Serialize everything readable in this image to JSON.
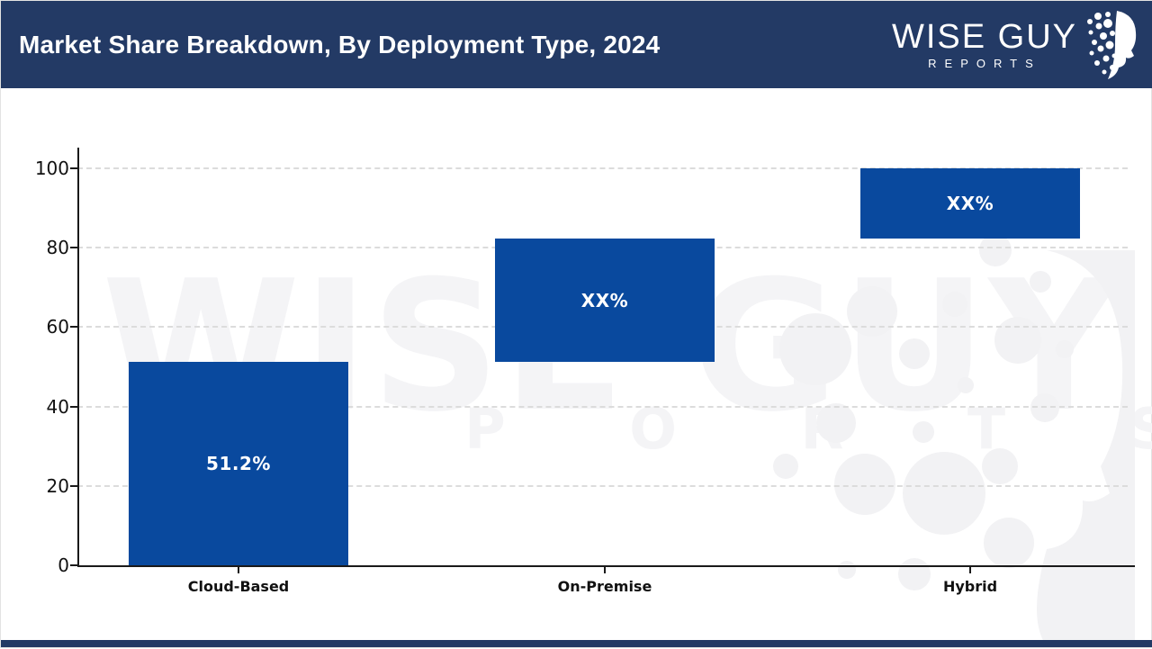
{
  "header": {
    "title": "Market Share Breakdown, By Deployment Type, 2024",
    "logo": {
      "brand_line1": "WISE GUY",
      "brand_line2": "REPORTS"
    }
  },
  "watermark": {
    "line1": "WISE GUY",
    "line2": "R E P O R T S"
  },
  "chart_data": {
    "type": "bar",
    "variant": "waterfall",
    "title": "Market Share Breakdown, By Deployment Type, 2024",
    "categories": [
      "Cloud-Based",
      "On-Premise",
      "Hybrid"
    ],
    "segments": [
      {
        "category": "Cloud-Based",
        "start": 0,
        "end": 51.2,
        "label": "51.2%"
      },
      {
        "category": "On-Premise",
        "start": 51.2,
        "end": 82.2,
        "label": "XX%"
      },
      {
        "category": "Hybrid",
        "start": 82.2,
        "end": 100,
        "label": "XX%"
      }
    ],
    "yticks": [
      0,
      20,
      40,
      60,
      80,
      100
    ],
    "ylim": [
      0,
      105
    ],
    "xlabel": "",
    "ylabel": "",
    "grid": "horizontal-dashed",
    "legend": "none",
    "bar_color": "#09499e",
    "bar_label_color": "#ffffff"
  },
  "colors": {
    "header_bg": "#233a65",
    "footer_bg": "#233a65",
    "bar": "#09499e",
    "gridline": "#dcdcdc",
    "axis": "#1a1a1a",
    "watermark": "#f4f4f6"
  }
}
